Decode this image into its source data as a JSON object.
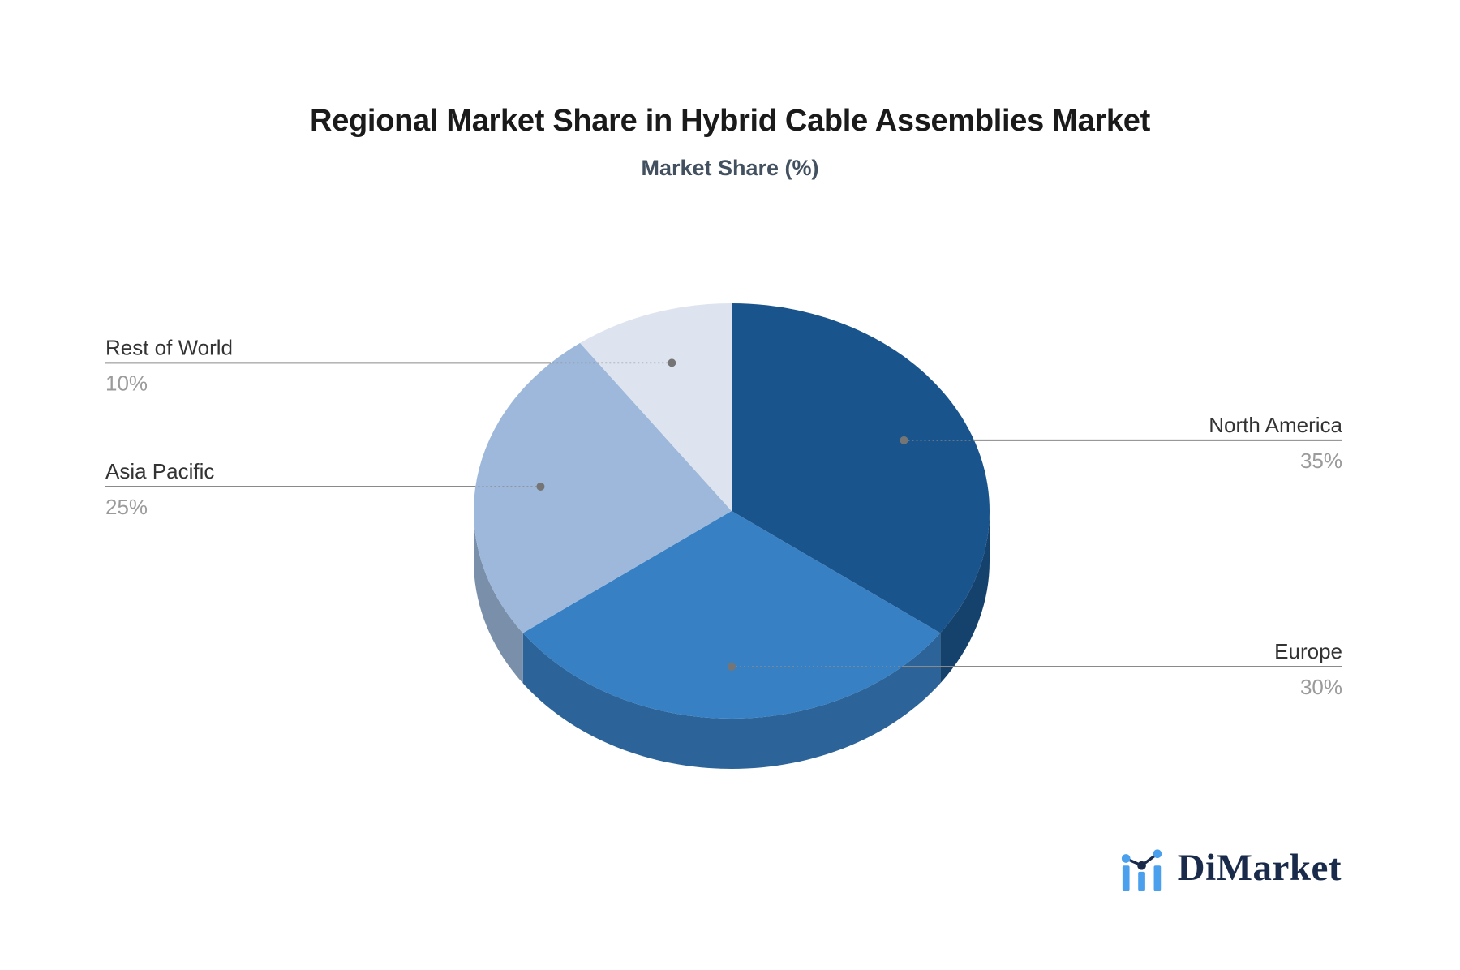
{
  "title": "Regional Market Share in Hybrid Cable Assemblies Market",
  "subtitle": "Market Share (%)",
  "brand": {
    "name": "DiMarket",
    "icon": "bar-line-chart-icon"
  },
  "colors": {
    "background": "#FFFFFF",
    "title": "#1A1A1A",
    "subtitle": "#42505F",
    "label": "#333333",
    "percent": "#9B9B9B",
    "leader": "#8A8A8A",
    "leader_dot": "#757575",
    "brand_text": "#1A2A4A",
    "brand_icon": "#4BA0EE"
  },
  "chart_data": {
    "type": "pie",
    "title": "Regional Market Share in Hybrid Cable Assemblies Market",
    "subtitle": "Market Share (%)",
    "unit": "%",
    "style": "3d-pie",
    "start_angle_deg": 0,
    "direction": "clockwise",
    "legend_position": "none",
    "slices": [
      {
        "label": "North America",
        "value": 35,
        "percent_label": "35%",
        "color": "#1A548C",
        "label_side": "right"
      },
      {
        "label": "Europe",
        "value": 30,
        "percent_label": "30%",
        "color": "#3880C4",
        "label_side": "right"
      },
      {
        "label": "Asia Pacific",
        "value": 25,
        "percent_label": "25%",
        "color": "#9DB8DA",
        "label_side": "left"
      },
      {
        "label": "Rest of World",
        "value": 10,
        "percent_label": "10%",
        "color": "#DDE4EF",
        "label_side": "left"
      }
    ]
  }
}
